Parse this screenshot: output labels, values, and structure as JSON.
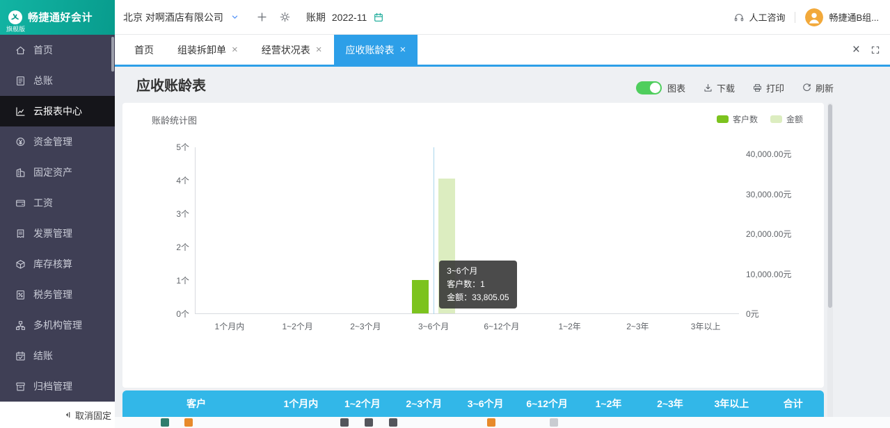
{
  "header": {
    "brand": {
      "name": "畅捷通好会计",
      "edition": "旗舰版"
    },
    "company": "北京 对啊酒店有限公司",
    "period_label": "账期",
    "period_value": "2022-11",
    "consult_label": "人工咨询",
    "user_name": "畅捷通B组..."
  },
  "sidebar": {
    "items": [
      {
        "label": "首页",
        "icon": "home",
        "active": false
      },
      {
        "label": "总账",
        "icon": "ledger",
        "active": false
      },
      {
        "label": "云报表中心",
        "icon": "report-center",
        "active": true
      },
      {
        "label": "资金管理",
        "icon": "fund",
        "active": false
      },
      {
        "label": "固定资产",
        "icon": "fixed-asset",
        "active": false
      },
      {
        "label": "工资",
        "icon": "salary",
        "active": false
      },
      {
        "label": "发票管理",
        "icon": "invoice",
        "active": false
      },
      {
        "label": "库存核算",
        "icon": "inventory",
        "active": false
      },
      {
        "label": "税务管理",
        "icon": "tax",
        "active": false
      },
      {
        "label": "多机构管理",
        "icon": "multi-org",
        "active": false
      },
      {
        "label": "结账",
        "icon": "closing",
        "active": false
      },
      {
        "label": "归档管理",
        "icon": "archive",
        "active": false
      }
    ],
    "unpin_label": "取消固定"
  },
  "tabs": [
    {
      "label": "首页",
      "closable": false,
      "active": false
    },
    {
      "label": "组装拆卸单",
      "closable": true,
      "active": false
    },
    {
      "label": "经营状况表",
      "closable": true,
      "active": false
    },
    {
      "label": "应收账龄表",
      "closable": true,
      "active": true
    }
  ],
  "page": {
    "title": "应收账龄表",
    "toggle_label": "图表",
    "download_label": "下载",
    "print_label": "打印",
    "refresh_label": "刷新"
  },
  "chart_data": {
    "type": "bar",
    "title": "账龄统计图",
    "categories": [
      "1个月内",
      "1~2个月",
      "2~3个月",
      "3~6个月",
      "6~12个月",
      "1~2年",
      "2~3年",
      "3年以上"
    ],
    "series": [
      {
        "name": "客户数",
        "color": "#7cc31e",
        "axis": "left",
        "values": [
          0,
          0,
          0,
          1,
          0,
          0,
          0,
          0
        ]
      },
      {
        "name": "金额",
        "color": "#dcedc0",
        "axis": "right",
        "values": [
          0,
          0,
          0,
          33805.05,
          0,
          0,
          0,
          0
        ]
      }
    ],
    "left_axis": {
      "max": 5,
      "ticks": [
        "0个",
        "1个",
        "2个",
        "3个",
        "4个",
        "5个"
      ]
    },
    "right_axis": {
      "max": 40000,
      "ticks": [
        "0元",
        "10,000.00元",
        "20,000.00元",
        "30,000.00元",
        "40,000.00元"
      ]
    },
    "legend": [
      "客户数",
      "金额"
    ],
    "legend_position": "top-right",
    "grid": false,
    "tooltip": {
      "title": "3~6个月",
      "lines": [
        "客户数：1",
        "金额：33,805.05"
      ]
    }
  },
  "table": {
    "headers": [
      "客户",
      "1个月内",
      "1~2个月",
      "2~3个月",
      "3~6个月",
      "6~12个月",
      "1~2年",
      "2~3年",
      "3年以上",
      "合计"
    ],
    "header_color": "#32b7e8"
  },
  "taskbar": {
    "icons": [
      {
        "x": 231,
        "color": "#2f7d6d"
      },
      {
        "x": 265,
        "color": "#e78a2a"
      },
      {
        "x": 489,
        "color": "#54565c"
      },
      {
        "x": 524,
        "color": "#54565c"
      },
      {
        "x": 559,
        "color": "#54565c"
      },
      {
        "x": 700,
        "color": "#e78a2a"
      },
      {
        "x": 790,
        "color": "#c9ccd1"
      }
    ]
  },
  "colors": {
    "brand_teal": "#0cb0a0",
    "sidebar_bg": "#3f3f55",
    "active_tab_blue": "#2d9fe8",
    "table_header_cyan": "#32b7e8",
    "toggle_green": "#4fce5d",
    "bar_customer_count": "#7cc31e",
    "bar_amount": "#dcedc0"
  }
}
